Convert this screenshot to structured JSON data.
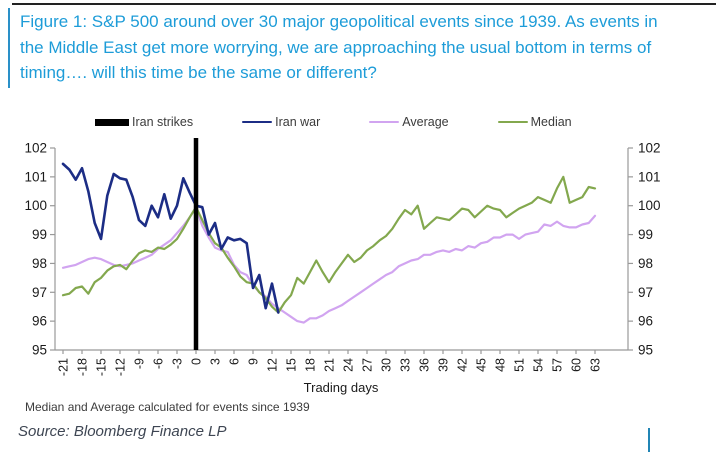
{
  "header": {
    "title": "Figure 1: S&P 500 around over 30 major geopolitical events since 1939. As events in the Middle East get more worrying, we are approaching the usual bottom in terms of timing…. will this time be the same or different?",
    "title_color": "#1d9cd8"
  },
  "footnote": "Median and Average calculated for events since 1939",
  "source": "Source: Bloomberg Finance LP",
  "chart_data": {
    "type": "line",
    "title": "",
    "xlabel": "Trading days",
    "ylabel": "",
    "ylim": [
      95,
      102
    ],
    "y_ticks": [
      95,
      96,
      97,
      98,
      99,
      100,
      101,
      102
    ],
    "x_range": [
      -21,
      63
    ],
    "x_ticks": [
      -21,
      -18,
      -15,
      -12,
      -9,
      -6,
      -3,
      0,
      3,
      6,
      9,
      12,
      15,
      18,
      21,
      24,
      27,
      30,
      33,
      36,
      39,
      42,
      45,
      48,
      51,
      54,
      57,
      60,
      63
    ],
    "legend": [
      "Iran strikes",
      "Iran war",
      "Average",
      "Median"
    ],
    "legend_position": "top",
    "grid": false,
    "axis_color": "#999999",
    "event_line": {
      "label": "Iran strikes",
      "x": 0,
      "color": "#000000"
    },
    "series": [
      {
        "name": "Average",
        "color": "#d1a4f0",
        "start_x": -21,
        "values": [
          97.85,
          97.9,
          97.95,
          98.05,
          98.15,
          98.2,
          98.15,
          98.05,
          97.95,
          97.9,
          97.95,
          98.0,
          98.1,
          98.2,
          98.3,
          98.5,
          98.65,
          98.8,
          99.05,
          99.3,
          99.6,
          99.95,
          99.3,
          98.9,
          98.55,
          98.45,
          98.4,
          97.95,
          97.7,
          97.6,
          97.25,
          97.0,
          96.85,
          96.6,
          96.45,
          96.3,
          96.15,
          96.0,
          95.95,
          96.1,
          96.1,
          96.2,
          96.35,
          96.45,
          96.55,
          96.7,
          96.85,
          97.0,
          97.15,
          97.3,
          97.45,
          97.6,
          97.7,
          97.9,
          98.0,
          98.1,
          98.15,
          98.3,
          98.3,
          98.4,
          98.45,
          98.4,
          98.5,
          98.45,
          98.6,
          98.55,
          98.7,
          98.75,
          98.9,
          98.9,
          99.0,
          99.0,
          98.85,
          99.0,
          99.05,
          99.1,
          99.35,
          99.3,
          99.45,
          99.3,
          99.25,
          99.25,
          99.35,
          99.4,
          99.65
        ]
      },
      {
        "name": "Median",
        "color": "#83a84e",
        "start_x": -21,
        "values": [
          96.9,
          96.95,
          97.15,
          97.2,
          96.95,
          97.35,
          97.5,
          97.75,
          97.9,
          97.95,
          97.8,
          98.1,
          98.35,
          98.45,
          98.4,
          98.55,
          98.5,
          98.65,
          98.85,
          99.2,
          99.6,
          99.95,
          99.5,
          99.05,
          98.7,
          98.55,
          98.2,
          97.9,
          97.55,
          97.35,
          97.3,
          97.0,
          96.8,
          96.5,
          96.3,
          96.65,
          96.9,
          97.5,
          97.3,
          97.7,
          98.1,
          97.7,
          97.35,
          97.7,
          98.0,
          98.3,
          98.05,
          98.2,
          98.45,
          98.6,
          98.8,
          98.95,
          99.2,
          99.55,
          99.85,
          99.7,
          100.0,
          99.2,
          99.4,
          99.6,
          99.55,
          99.5,
          99.7,
          99.9,
          99.85,
          99.6,
          99.8,
          100.0,
          99.9,
          99.85,
          99.6,
          99.75,
          99.9,
          100.0,
          100.1,
          100.3,
          100.2,
          100.1,
          100.6,
          101.0,
          100.1,
          100.2,
          100.3,
          100.65,
          100.6
        ]
      },
      {
        "name": "Iran war",
        "color": "#1c2d85",
        "start_x": -21,
        "values": [
          101.45,
          101.25,
          100.9,
          101.3,
          100.5,
          99.4,
          98.85,
          100.35,
          101.1,
          100.95,
          100.9,
          100.3,
          99.5,
          99.3,
          100.0,
          99.6,
          100.4,
          99.55,
          100.0,
          100.95,
          100.45,
          100.0,
          99.95,
          99.0,
          99.4,
          98.5,
          98.9,
          98.8,
          98.85,
          98.7,
          97.15,
          97.6,
          96.45,
          97.3,
          96.3
        ]
      }
    ]
  }
}
